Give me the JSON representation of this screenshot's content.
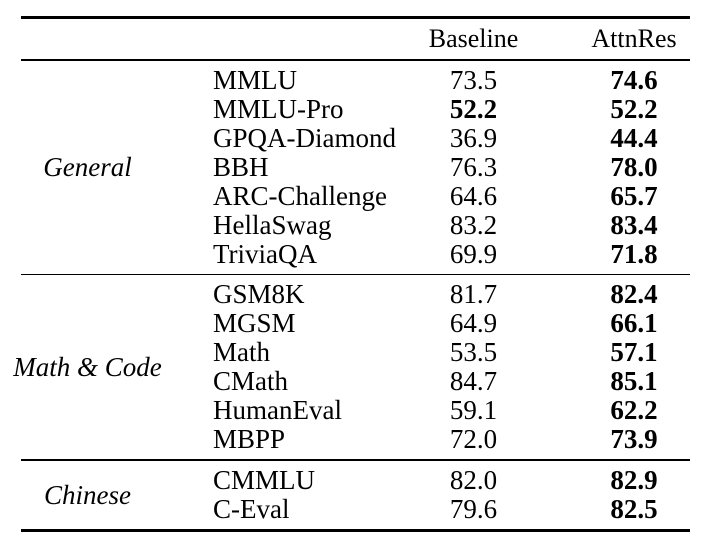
{
  "table": {
    "columns": {
      "baseline": "Baseline",
      "attnres": "AttnRes"
    },
    "sections": [
      {
        "group": "General",
        "rows": [
          {
            "name": "MMLU",
            "baseline": "73.5",
            "attnres": "74.6"
          },
          {
            "name": "MMLU-Pro",
            "baseline": "52.2",
            "attnres": "52.2"
          },
          {
            "name": "GPQA-Diamond",
            "baseline": "36.9",
            "attnres": "44.4"
          },
          {
            "name": "BBH",
            "baseline": "76.3",
            "attnres": "78.0"
          },
          {
            "name": "ARC-Challenge",
            "baseline": "64.6",
            "attnres": "65.7"
          },
          {
            "name": "HellaSwag",
            "baseline": "83.2",
            "attnres": "83.4"
          },
          {
            "name": "TriviaQA",
            "baseline": "69.9",
            "attnres": "71.8"
          }
        ]
      },
      {
        "group": "Math & Code",
        "rows": [
          {
            "name": "GSM8K",
            "baseline": "81.7",
            "attnres": "82.4"
          },
          {
            "name": "MGSM",
            "baseline": "64.9",
            "attnres": "66.1"
          },
          {
            "name": "Math",
            "baseline": "53.5",
            "attnres": "57.1"
          },
          {
            "name": "CMath",
            "baseline": "84.7",
            "attnres": "85.1"
          },
          {
            "name": "HumanEval",
            "baseline": "59.1",
            "attnres": "62.2"
          },
          {
            "name": "MBPP",
            "baseline": "72.0",
            "attnres": "73.9"
          }
        ]
      },
      {
        "group": "Chinese",
        "rows": [
          {
            "name": "CMMLU",
            "baseline": "82.0",
            "attnres": "82.9"
          },
          {
            "name": "C-Eval",
            "baseline": "79.6",
            "attnres": "82.5"
          }
        ]
      }
    ]
  }
}
